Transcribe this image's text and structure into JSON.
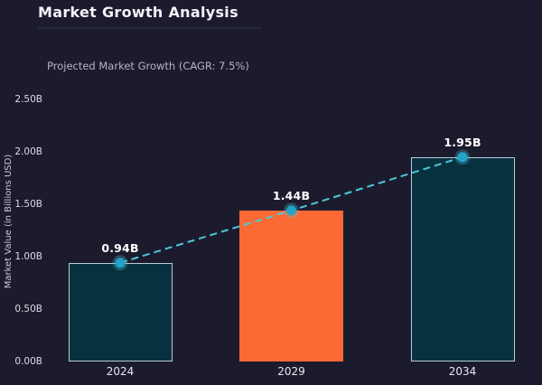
{
  "title": "Market Growth Analysis",
  "subtitle": "Projected Market Growth (CAGR: 7.5%)",
  "colors": {
    "background": "#1c1b2e",
    "title_text": "#f2f2f7",
    "subtitle_text": "#b4b4c2",
    "tick_text": "#dcdce4",
    "axis_title_text": "#c8c8d3",
    "value_label_text": "#ffffff",
    "bar_teal": "#083140",
    "bar_orange": "#fb6a35",
    "bar_edge_light": "#b9cdd4",
    "trend_line": "#4fc8da",
    "marker_fill": "#25a3c6",
    "marker_halo": "rgba(79,200,218,0.28)"
  },
  "chart_data": {
    "type": "bar",
    "title": "Market Growth Analysis",
    "subtitle": "Projected Market Growth (CAGR: 7.5%)",
    "categories": [
      "2024",
      "2029",
      "2034"
    ],
    "values": [
      0.94,
      1.44,
      1.95
    ],
    "value_labels": [
      "0.94B",
      "1.44B",
      "1.95B"
    ],
    "bar_colors": [
      "#083140",
      "#fb6a35",
      "#083140"
    ],
    "bar_edges": [
      "#b9cdd4",
      "none",
      "#b9cdd4"
    ],
    "xlabel": "",
    "ylabel": "Market Value (in Billions USD)",
    "ylim": [
      0,
      2.5
    ],
    "ytick_values": [
      0,
      0.5,
      1.0,
      1.5,
      2.0,
      2.5
    ],
    "ytick_labels": [
      "0.00B",
      "0.50B",
      "1.00B",
      "1.50B",
      "2.00B",
      "2.50B"
    ],
    "grid": false,
    "legend": false,
    "overlay_line": {
      "type": "line",
      "style": "dashed",
      "markers": true,
      "x": [
        "2024",
        "2029",
        "2034"
      ],
      "y": [
        0.94,
        1.44,
        1.95
      ]
    }
  }
}
